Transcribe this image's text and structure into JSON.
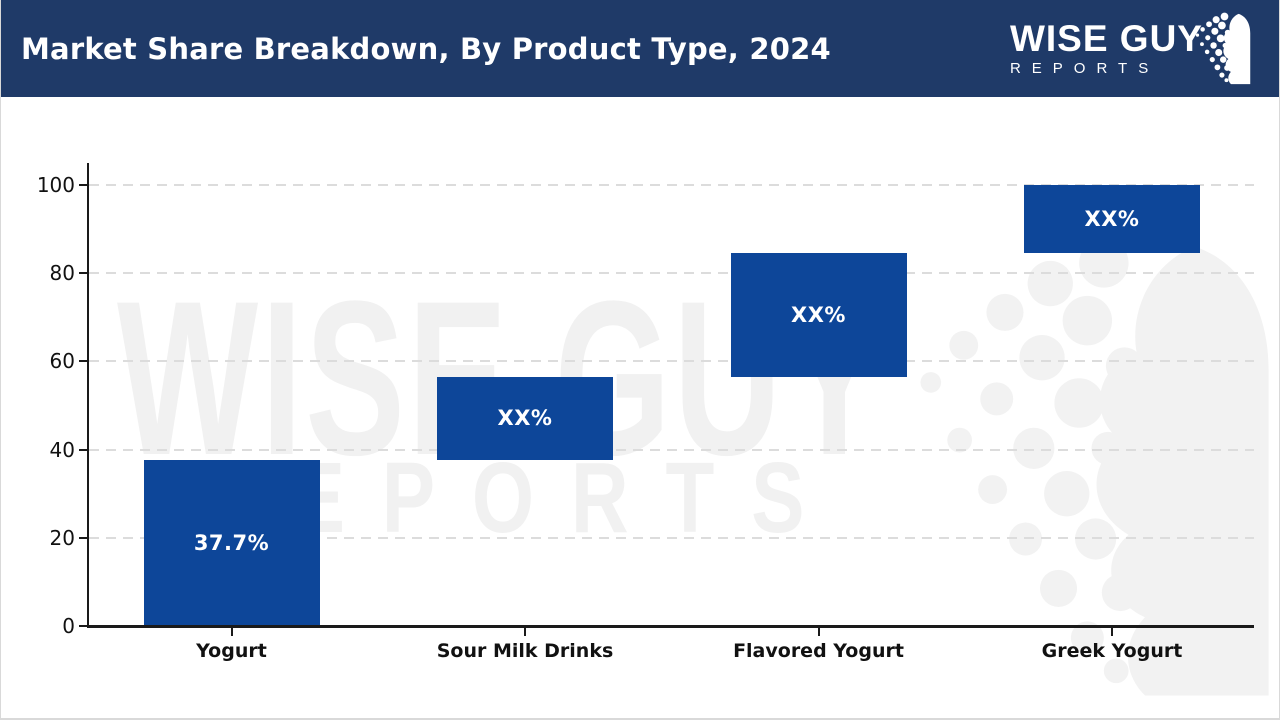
{
  "header": {
    "title": "Market Share Breakdown, By Product Type, 2024",
    "logo": {
      "wordmark": "WISE GUY",
      "subtitle": "REPORTS"
    }
  },
  "watermark": {
    "wordmark": "WISE GUY",
    "subtitle": "REPORTS"
  },
  "colors": {
    "header_bg": "#1f3a68",
    "bar": "#0d4699",
    "bar_label": "#ffffff",
    "axis": "#1a1a1a",
    "grid": "#dcdcdc",
    "tick_label": "#111111",
    "watermark": "#f1f1f1",
    "border": "#d9d9d9"
  },
  "chart_data": {
    "type": "bar",
    "variant": "waterfall",
    "title": "Market Share Breakdown, By Product Type, 2024",
    "categories": [
      "Yogurt",
      "Sour Milk Drinks",
      "Flavored Yogurt",
      "Greek Yogurt"
    ],
    "segments": [
      {
        "category": "Yogurt",
        "start": 0,
        "end": 37.7,
        "label": "37.7%"
      },
      {
        "category": "Sour Milk Drinks",
        "start": 37.7,
        "end": 56.5,
        "label": "XX%"
      },
      {
        "category": "Flavored Yogurt",
        "start": 56.5,
        "end": 84.6,
        "label": "XX%"
      },
      {
        "category": "Greek Yogurt",
        "start": 84.6,
        "end": 100,
        "label": "XX%"
      }
    ],
    "xlabel": "",
    "ylabel": "",
    "yticks": [
      0,
      20,
      40,
      60,
      80,
      100
    ],
    "ylim": [
      0,
      105
    ],
    "grid": "horizontal-dashed",
    "legend": "none"
  }
}
